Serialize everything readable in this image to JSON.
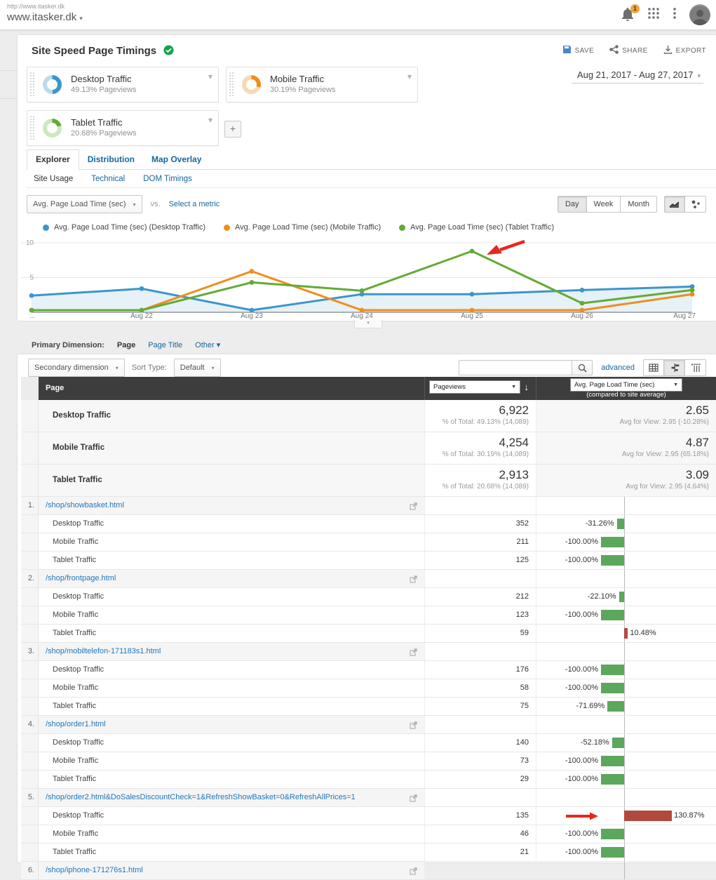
{
  "topbar": {
    "url_small": "http://www.itasker.dk",
    "account": "www.itasker.dk",
    "notification_count": "1"
  },
  "header": {
    "title": "Site Speed Page Timings",
    "actions": [
      {
        "label": "SAVE",
        "icon": "save-icon"
      },
      {
        "label": "SHARE",
        "icon": "share-icon"
      },
      {
        "label": "EXPORT",
        "icon": "export-icon"
      }
    ]
  },
  "segments": [
    {
      "name": "Desktop Traffic",
      "detail": "49.13% Pageviews",
      "percent": 49.13,
      "color": "#3c96cc",
      "light": "#bdd9ec"
    },
    {
      "name": "Mobile Traffic",
      "detail": "30.19% Pageviews",
      "percent": 30.19,
      "color": "#ef8e1d",
      "light": "#f8d9b3"
    },
    {
      "name": "Tablet Traffic",
      "detail": "20.68% Pageviews",
      "percent": 20.68,
      "color": "#63ab35",
      "light": "#cde7c0"
    }
  ],
  "add_segment_label": "+",
  "date_range": "Aug 21, 2017 - Aug 27, 2017",
  "tabs": [
    {
      "label": "Explorer",
      "active": true
    },
    {
      "label": "Distribution",
      "active": false
    },
    {
      "label": "Map Overlay",
      "active": false
    }
  ],
  "subtabs": [
    {
      "label": "Site Usage",
      "active": true
    },
    {
      "label": "Technical",
      "active": false
    },
    {
      "label": "DOM Timings",
      "active": false
    }
  ],
  "metric_bar": {
    "metric_dropdown": "Avg. Page Load Time (sec)",
    "vs_label": "vs.",
    "select_metric_label": "Select a metric",
    "granularity": [
      "Day",
      "Week",
      "Month"
    ],
    "active_granularity": "Day"
  },
  "chart_data": {
    "type": "line",
    "x": [
      "...",
      "Aug 22",
      "Aug 23",
      "Aug 24",
      "Aug 25",
      "Aug 26",
      "Aug 27"
    ],
    "ylim": [
      0,
      10
    ],
    "yticks": [
      5,
      10
    ],
    "grid": true,
    "legend_position": "top",
    "series": [
      {
        "name": "Avg. Page Load Time (sec) (Desktop Traffic)",
        "color": "#3c96cc",
        "area": true,
        "values": [
          2.4,
          3.4,
          0.3,
          2.6,
          2.6,
          3.2,
          3.7
        ]
      },
      {
        "name": "Avg. Page Load Time (sec) (Mobile Traffic)",
        "color": "#ef8e1d",
        "area": false,
        "values": [
          0.3,
          0.3,
          5.9,
          0.3,
          0.3,
          0.3,
          2.6
        ]
      },
      {
        "name": "Avg. Page Load Time (sec) (Tablet Traffic)",
        "color": "#63ab35",
        "area": false,
        "values": [
          0.3,
          0.3,
          4.3,
          3.1,
          8.8,
          1.3,
          3.2
        ]
      }
    ],
    "annotations": [
      {
        "type": "red-arrow",
        "target": "Tablet Traffic peak Aug 25"
      }
    ]
  },
  "primary_dimension": {
    "label": "Primary Dimension:",
    "options": [
      {
        "label": "Page",
        "active": true
      },
      {
        "label": "Page Title",
        "active": false
      },
      {
        "label": "Other",
        "active": false,
        "chevron": true
      }
    ]
  },
  "table_toolbar": {
    "secondary_dimension_label": "Secondary dimension",
    "sort_type_label": "Sort Type:",
    "sort_type_value": "Default",
    "search_value": "",
    "advanced_label": "advanced"
  },
  "table": {
    "columns": {
      "page": "Page",
      "pageviews": "Pageviews",
      "metric": "Avg. Page Load Time (sec)",
      "metric_sub": "(compared to site average)"
    },
    "summary": [
      {
        "label": "Desktop Traffic",
        "pageviews": "6,922",
        "pageviews_sub": "% of Total: 49.13% (14,089)",
        "metric": "2.65",
        "metric_sub": "Avg for View: 2.95 (-10.28%)"
      },
      {
        "label": "Mobile Traffic",
        "pageviews": "4,254",
        "pageviews_sub": "% of Total: 30.19% (14,089)",
        "metric": "4.87",
        "metric_sub": "Avg for View: 2.95 (65.18%)"
      },
      {
        "label": "Tablet Traffic",
        "pageviews": "2,913",
        "pageviews_sub": "% of Total: 20.68% (14,089)",
        "metric": "3.09",
        "metric_sub": "Avg for View: 2.95 (4.64%)"
      }
    ],
    "rows": [
      {
        "index": "1.",
        "page": "/shop/showbasket.html",
        "subs": [
          {
            "label": "Desktop Traffic",
            "pageviews": "352",
            "pct": -31.26,
            "pct_label": "-31.26%"
          },
          {
            "label": "Mobile Traffic",
            "pageviews": "211",
            "pct": -100,
            "pct_label": "-100.00%"
          },
          {
            "label": "Tablet Traffic",
            "pageviews": "125",
            "pct": -100,
            "pct_label": "-100.00%"
          }
        ]
      },
      {
        "index": "2.",
        "page": "/shop/frontpage.html",
        "subs": [
          {
            "label": "Desktop Traffic",
            "pageviews": "212",
            "pct": -22.1,
            "pct_label": "-22.10%"
          },
          {
            "label": "Mobile Traffic",
            "pageviews": "123",
            "pct": -100,
            "pct_label": "-100.00%"
          },
          {
            "label": "Tablet Traffic",
            "pageviews": "59",
            "pct": 10.48,
            "pct_label": "10.48%"
          }
        ]
      },
      {
        "index": "3.",
        "page": "/shop/mobiltelefon-171183s1.html",
        "subs": [
          {
            "label": "Desktop Traffic",
            "pageviews": "176",
            "pct": -100,
            "pct_label": "-100.00%"
          },
          {
            "label": "Mobile Traffic",
            "pageviews": "58",
            "pct": -100,
            "pct_label": "-100.00%"
          },
          {
            "label": "Tablet Traffic",
            "pageviews": "75",
            "pct": -71.69,
            "pct_label": "-71.69%"
          }
        ]
      },
      {
        "index": "4.",
        "page": "/shop/order1.html",
        "subs": [
          {
            "label": "Desktop Traffic",
            "pageviews": "140",
            "pct": -52.18,
            "pct_label": "-52.18%"
          },
          {
            "label": "Mobile Traffic",
            "pageviews": "73",
            "pct": -100,
            "pct_label": "-100.00%"
          },
          {
            "label": "Tablet Traffic",
            "pageviews": "29",
            "pct": -100,
            "pct_label": "-100.00%"
          }
        ]
      },
      {
        "index": "5.",
        "page": "/shop/order2.html&DoSalesDiscountCheck=1&RefreshShowBasket=0&RefreshAllPrices=1",
        "subs": [
          {
            "label": "Desktop Traffic",
            "pageviews": "135",
            "pct": 130.87,
            "pct_label": "130.87%",
            "arrow": true
          },
          {
            "label": "Mobile Traffic",
            "pageviews": "46",
            "pct": -100,
            "pct_label": "-100.00%"
          },
          {
            "label": "Tablet Traffic",
            "pageviews": "21",
            "pct": -100,
            "pct_label": "-100.00%"
          }
        ]
      },
      {
        "index": "6.",
        "page": "/shop/iphone-171276s1.html",
        "subs": []
      }
    ]
  },
  "icons": {
    "chevron_down": "▾",
    "select_arrow": "▼",
    "sort_desc": "↓",
    "kebab": "⋮"
  },
  "colors": {
    "bar_negative": "#5ba75b",
    "bar_positive": "#b2493e",
    "annotation_red": "#e8261d",
    "link_blue": "#2277bb",
    "nav_blue": "#15679a",
    "header_dark": "#3d3d3d"
  }
}
